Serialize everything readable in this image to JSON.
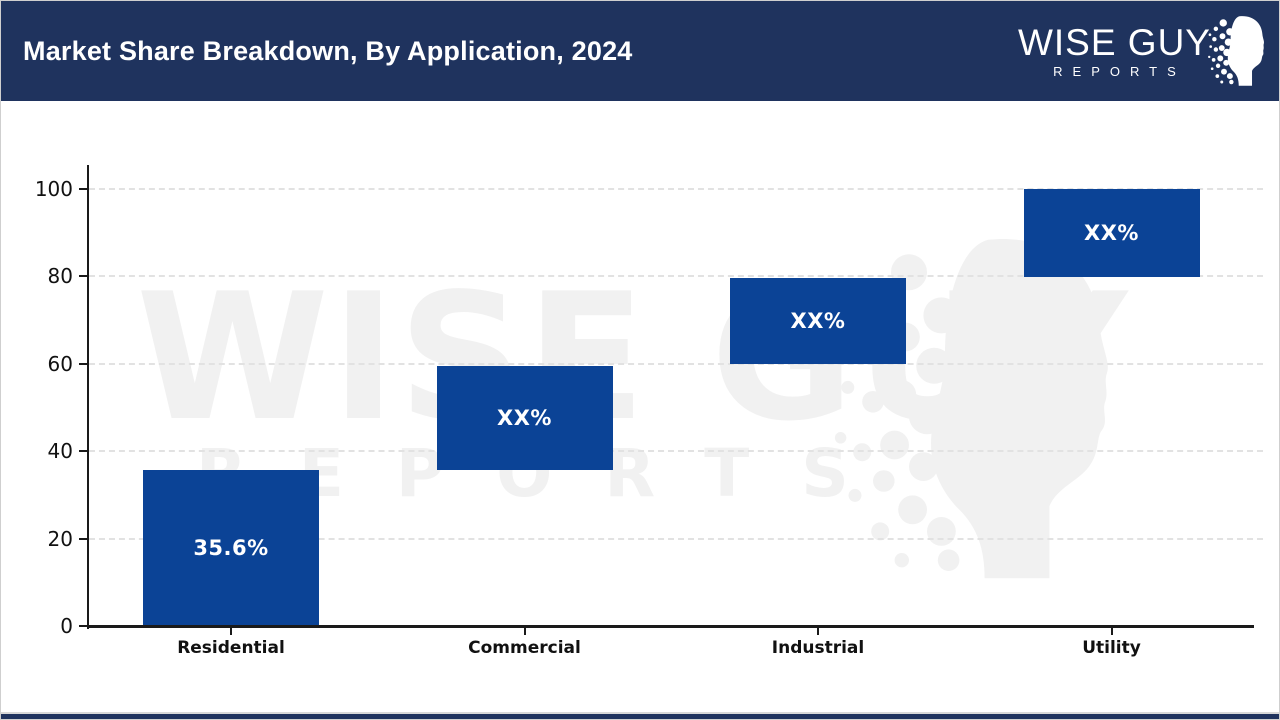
{
  "header": {
    "title": "Market Share Breakdown, By Application, 2024",
    "logo": {
      "wordmark": "WISE GUY",
      "subtitle": "REPORTS"
    }
  },
  "watermark": {
    "wordmark": "WISE GUY",
    "subtitle": "REPORTS"
  },
  "colors": {
    "header_bg": "#1f335e",
    "bar": "#0b4396",
    "bar_label": "#ffffff",
    "axis": "#1a1a1a",
    "grid": "#e2e2e2",
    "watermark": "#f1f1f1",
    "text": "#111111"
  },
  "chart_data": {
    "type": "bar",
    "variant": "waterfall",
    "title": "Market Share Breakdown, By Application, 2024",
    "categories": [
      "Residential",
      "Commercial",
      "Industrial",
      "Utility"
    ],
    "segments": [
      {
        "category": "Residential",
        "start": 0,
        "end": 35.6,
        "label": "35.6%"
      },
      {
        "category": "Commercial",
        "start": 35.6,
        "end": 59.5,
        "label": "XX%"
      },
      {
        "category": "Industrial",
        "start": 59.9,
        "end": 79.7,
        "label": "XX%"
      },
      {
        "category": "Utility",
        "start": 79.8,
        "end": 100,
        "label": "XX%"
      }
    ],
    "ylim": [
      0,
      100
    ],
    "yticks": [
      0,
      20,
      40,
      60,
      80,
      100
    ],
    "ytick_labels": [
      "0",
      "20",
      "40",
      "60",
      "80",
      "100"
    ],
    "xlabel": "",
    "ylabel": "",
    "grid": "horizontal-dashed",
    "legend": "none"
  }
}
